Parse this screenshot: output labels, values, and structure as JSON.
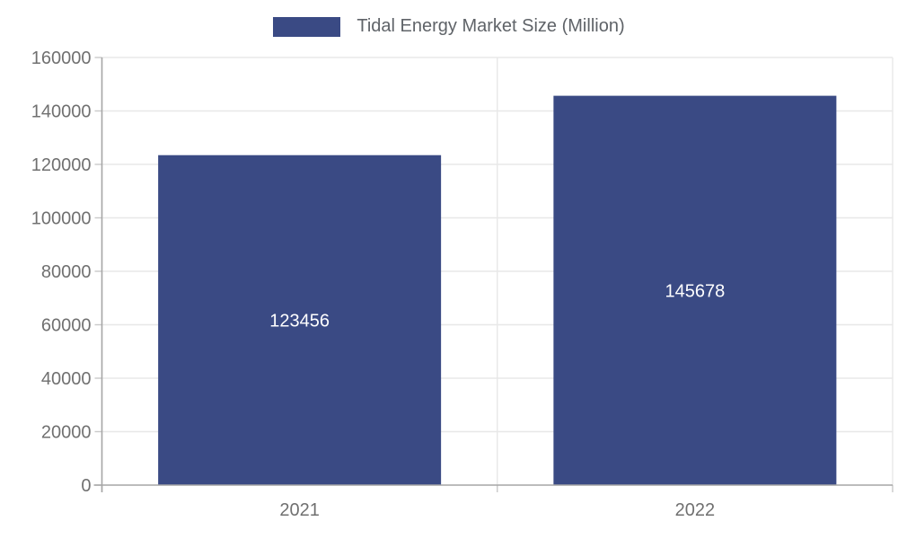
{
  "chart": {
    "legend": {
      "label": "Tidal Energy Market Size (Million)",
      "position": "top-center"
    },
    "colors": {
      "bar": "#3A4A84",
      "grid": "#E8E8E8",
      "axis": "#A6A6A6",
      "tick": "#C9C9C9",
      "tick_label": "#707070",
      "value_label": "#FFFFFF",
      "legend_text": "#5F6368",
      "background": "#FFFFFF"
    }
  },
  "chart_data": {
    "type": "bar",
    "title": "Tidal Energy Market Size (Million)",
    "series_name": "Tidal Energy Market Size (Million)",
    "categories": [
      "2021",
      "2022"
    ],
    "values": [
      123456,
      145678
    ],
    "value_labels": [
      "123456",
      "145678"
    ],
    "xlabel": "",
    "ylabel": "",
    "ylim": [
      0,
      160000
    ],
    "ytick_step": 20000,
    "yticks": [
      0,
      20000,
      40000,
      60000,
      80000,
      100000,
      120000,
      140000,
      160000
    ],
    "ytick_labels": [
      "0",
      "20000",
      "40000",
      "60000",
      "80000",
      "100000",
      "120000",
      "140000",
      "160000"
    ],
    "grid": true,
    "legend_position": "top"
  }
}
